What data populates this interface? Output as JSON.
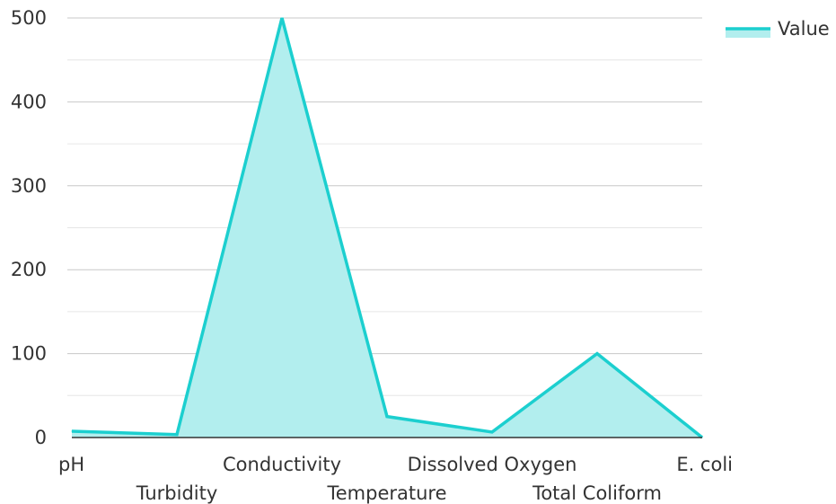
{
  "chart_data": {
    "type": "area",
    "title": "",
    "xlabel": "",
    "ylabel": "",
    "categories": [
      "pH",
      "Turbidity",
      "Conductivity",
      "Temperature",
      "Dissolved Oxygen",
      "Total Coliform",
      "E. coli"
    ],
    "series": [
      {
        "name": "Value",
        "values": [
          7.5,
          3.5,
          500,
          25,
          6.5,
          100,
          0
        ]
      }
    ],
    "ylim": [
      0,
      500
    ],
    "yticks": [
      0,
      100,
      200,
      300,
      400,
      500
    ],
    "grid": true,
    "legend_position": "top-right",
    "colors": {
      "line": "#1ccfcf",
      "fill": "#b2eeee",
      "grid": "#d9d9d9",
      "axis": "#333333"
    }
  }
}
